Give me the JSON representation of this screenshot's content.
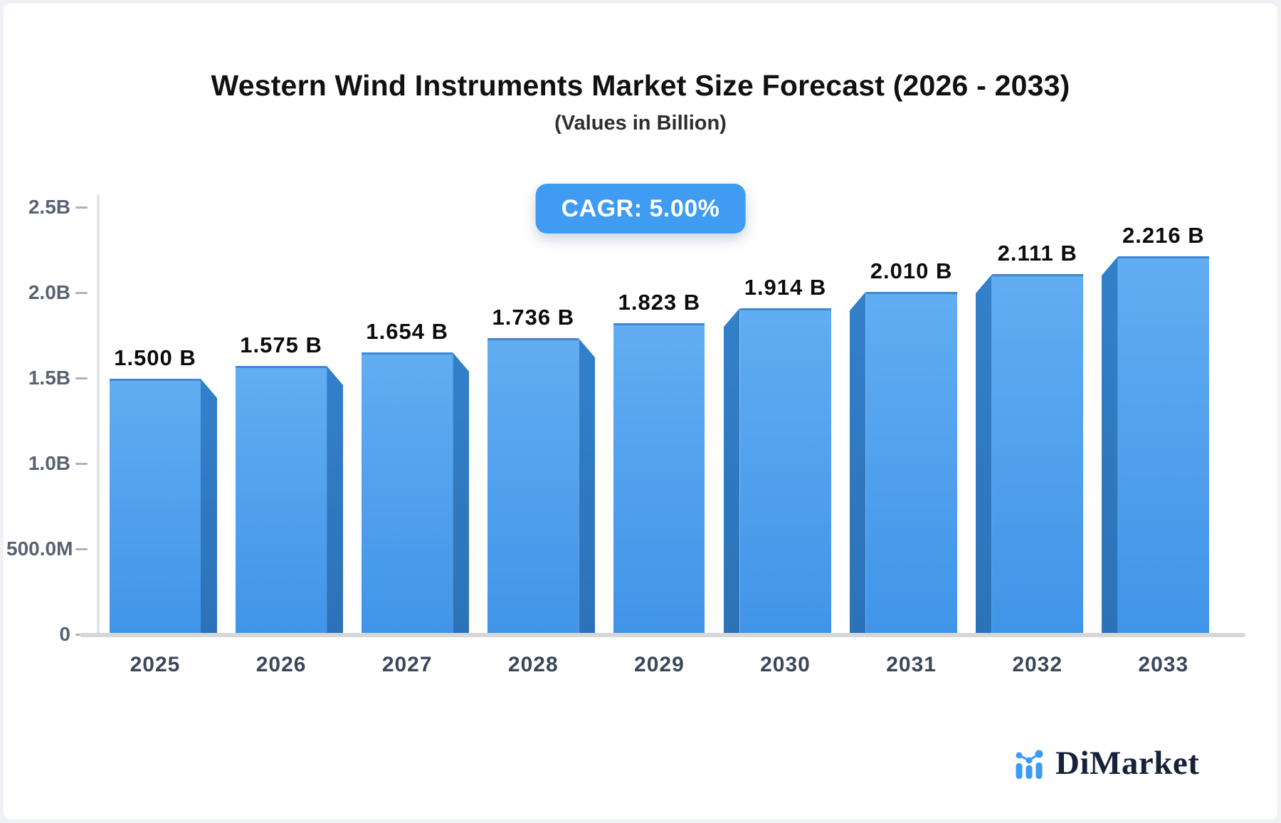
{
  "header": {
    "title": "Western Wind Instruments Market Size Forecast (2026 - 2033)",
    "subtitle": "(Values in Billion)",
    "cagr_label": "CAGR: 5.00%"
  },
  "brand": {
    "name": "DiMarket"
  },
  "colors": {
    "bar_face_top": "#62adf2",
    "bar_face_bottom": "#4094e8",
    "bar_top_edge": "#3e87d3",
    "bevel_light": "#3380ca",
    "bevel_dark": "#2c72b8",
    "badge_bg": "#3f9cf2",
    "brand_blue": "#3b9bf5",
    "brand_navy": "#16213a"
  },
  "chart_data": {
    "type": "bar",
    "title": "Western Wind Instruments Market Size Forecast (2026 - 2033)",
    "subtitle": "(Values in Billion)",
    "categories": [
      "2025",
      "2026",
      "2027",
      "2028",
      "2029",
      "2030",
      "2031",
      "2032",
      "2033"
    ],
    "values": [
      1.5,
      1.575,
      1.654,
      1.736,
      1.823,
      1.914,
      2.01,
      2.111,
      2.216
    ],
    "bar_labels": [
      "1.500 B",
      "1.575 B",
      "1.654 B",
      "1.736 B",
      "1.823 B",
      "1.914 B",
      "2.010 B",
      "2.111 B",
      "2.216 B"
    ],
    "unit": "B",
    "xlabel": "",
    "ylabel": "",
    "ylim": [
      0,
      2.5
    ],
    "y_ticks": [
      {
        "label": "2.5B",
        "value": 2.5
      },
      {
        "label": "2.0B",
        "value": 2.0
      },
      {
        "label": "1.5B",
        "value": 1.5
      },
      {
        "label": "1.0B",
        "value": 1.0
      },
      {
        "label": "500.0M",
        "value": 0.5
      },
      {
        "label": "0",
        "value": 0
      }
    ],
    "grid": false,
    "legend": false,
    "annotations": [
      "CAGR: 5.00%"
    ]
  }
}
